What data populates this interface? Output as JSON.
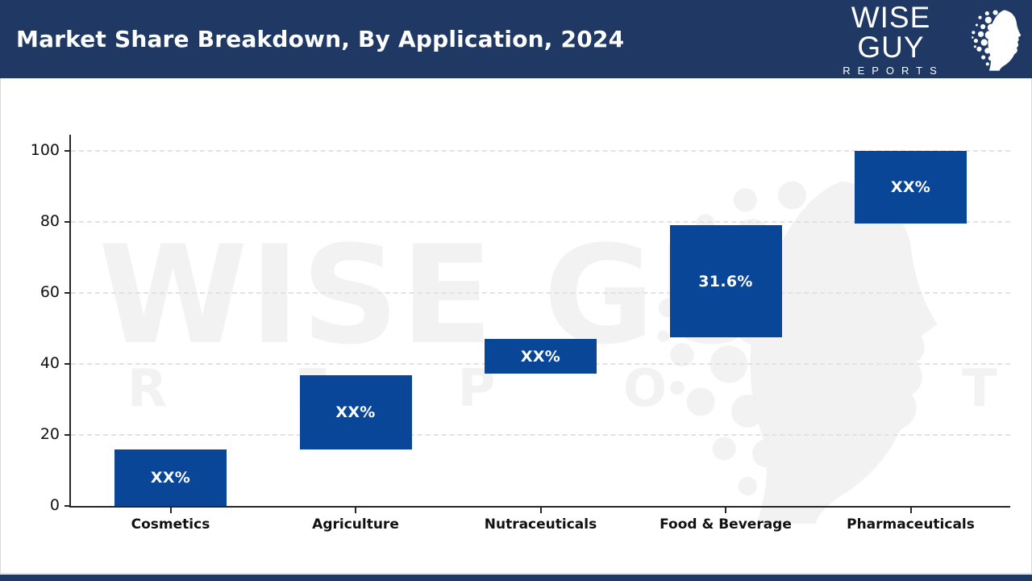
{
  "header": {
    "title": "Market Share Breakdown, By Application, 2024",
    "logo": {
      "line1": "WISE GUY",
      "line2": "REPORTS"
    }
  },
  "watermark": {
    "line1": "WISE GUY",
    "line2": "R E P O R T S"
  },
  "colors": {
    "header_bg": "#1f3864",
    "bar_blue": "#094697",
    "watermark_gray": "#f2f2f2",
    "gridline_gray": "#e2e2e2"
  },
  "chart_data": {
    "type": "bar",
    "subtype": "waterfall",
    "title": "Market Share Breakdown, By Application, 2024",
    "xlabel": "",
    "ylabel": "",
    "ylim": [
      0,
      100
    ],
    "yticks": [
      0,
      20,
      40,
      60,
      80,
      100
    ],
    "grid": "horizontal-dashed",
    "legend": "none",
    "categories": [
      "Cosmetics",
      "Agriculture",
      "Nutraceuticals",
      "Food & Beverage",
      "Pharmaceuticals"
    ],
    "bars": [
      {
        "category": "Cosmetics",
        "from": 0,
        "to": 16,
        "label": "XX%"
      },
      {
        "category": "Agriculture",
        "from": 15.8,
        "to": 36.8,
        "label": "XX%"
      },
      {
        "category": "Nutraceuticals",
        "from": 37.2,
        "to": 47.0,
        "label": "XX%"
      },
      {
        "category": "Food & Beverage",
        "from": 47.4,
        "to": 79.0,
        "label": "31.6%"
      },
      {
        "category": "Pharmaceuticals",
        "from": 79.5,
        "to": 100,
        "label": "XX%"
      }
    ],
    "bar_color": "#094697",
    "value_label_color": "#ffffff"
  }
}
